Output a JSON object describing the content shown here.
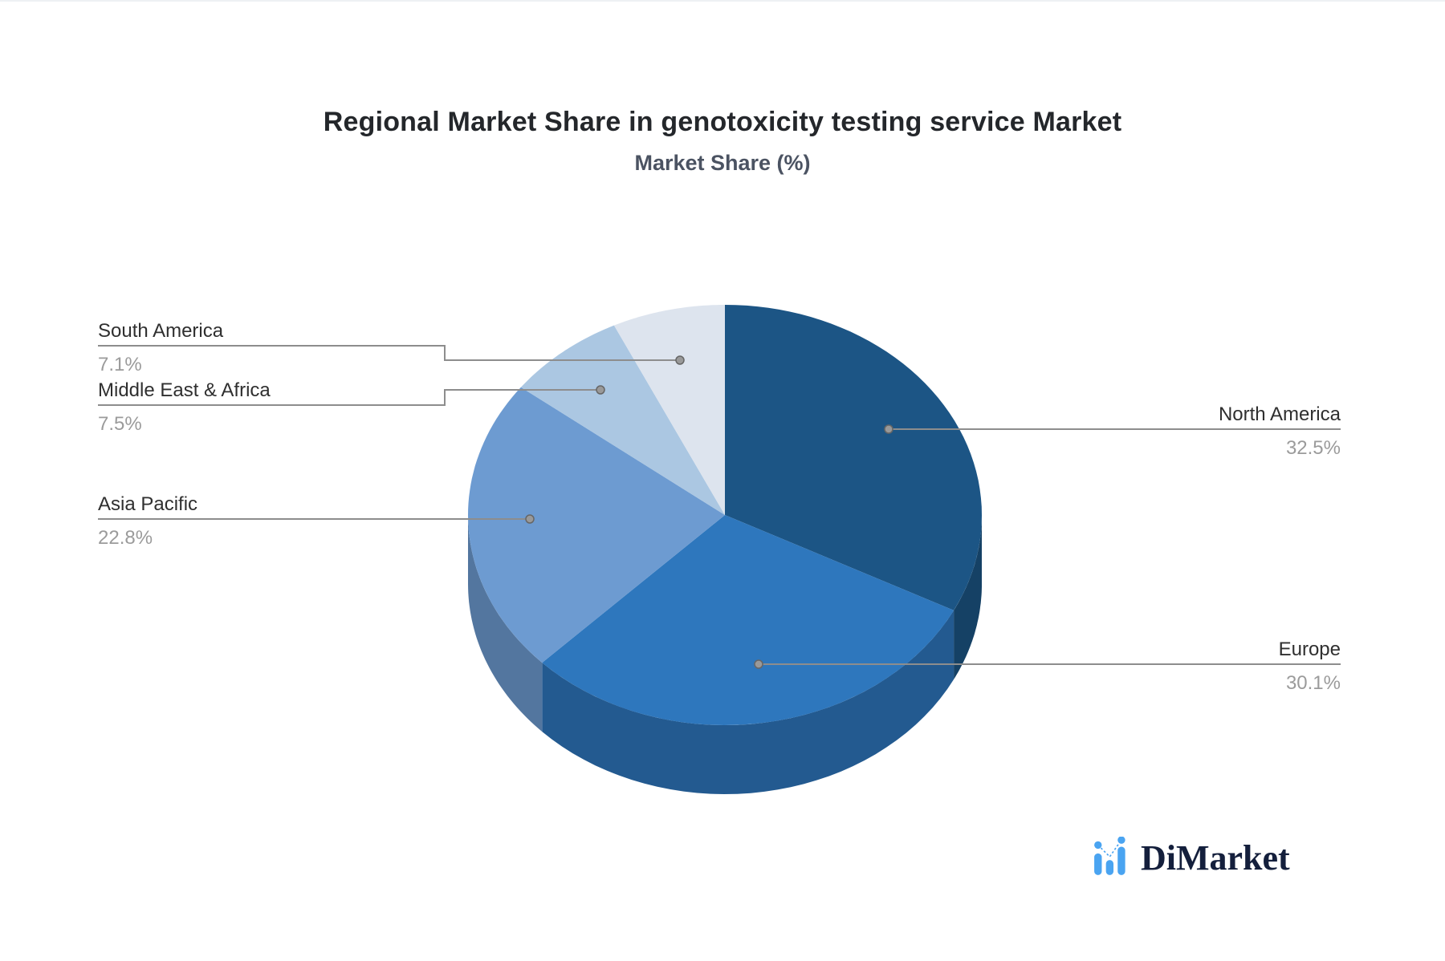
{
  "page": {
    "title": "Regional Market Share in genotoxicity testing service Market",
    "subtitle": "Market Share (%)"
  },
  "chart_data": {
    "type": "pie",
    "style": "3d",
    "title": "Regional Market Share in genotoxicity testing service Market",
    "subtitle": "Market Share (%)",
    "unit": "%",
    "start_angle_deg": 0,
    "direction": "clockwise",
    "legend_position": "callout-labels",
    "series": [
      {
        "name": "North America",
        "value": 32.5,
        "label": "32.5%",
        "color": "#1c5585",
        "label_side": "right"
      },
      {
        "name": "Europe",
        "value": 30.1,
        "label": "30.1%",
        "color": "#2e77bd",
        "label_side": "right"
      },
      {
        "name": "Asia Pacific",
        "value": 22.8,
        "label": "22.8%",
        "color": "#6d9bd1",
        "label_side": "left"
      },
      {
        "name": "Middle East & Africa",
        "value": 7.5,
        "label": "7.5%",
        "color": "#abc7e2",
        "label_side": "left"
      },
      {
        "name": "South America",
        "value": 7.1,
        "label": "7.1%",
        "color": "#dde4ee",
        "label_side": "left"
      }
    ],
    "leader_line_color": "#8d8d8d",
    "name_color": "#2f2f2f",
    "value_color": "#9b9b9b"
  },
  "branding": {
    "logo_text": "DiMarket",
    "logo_icon": "bar-chart-sparkline-icon",
    "accent_color": "#4aa4f1",
    "text_color": "#141f3c"
  }
}
